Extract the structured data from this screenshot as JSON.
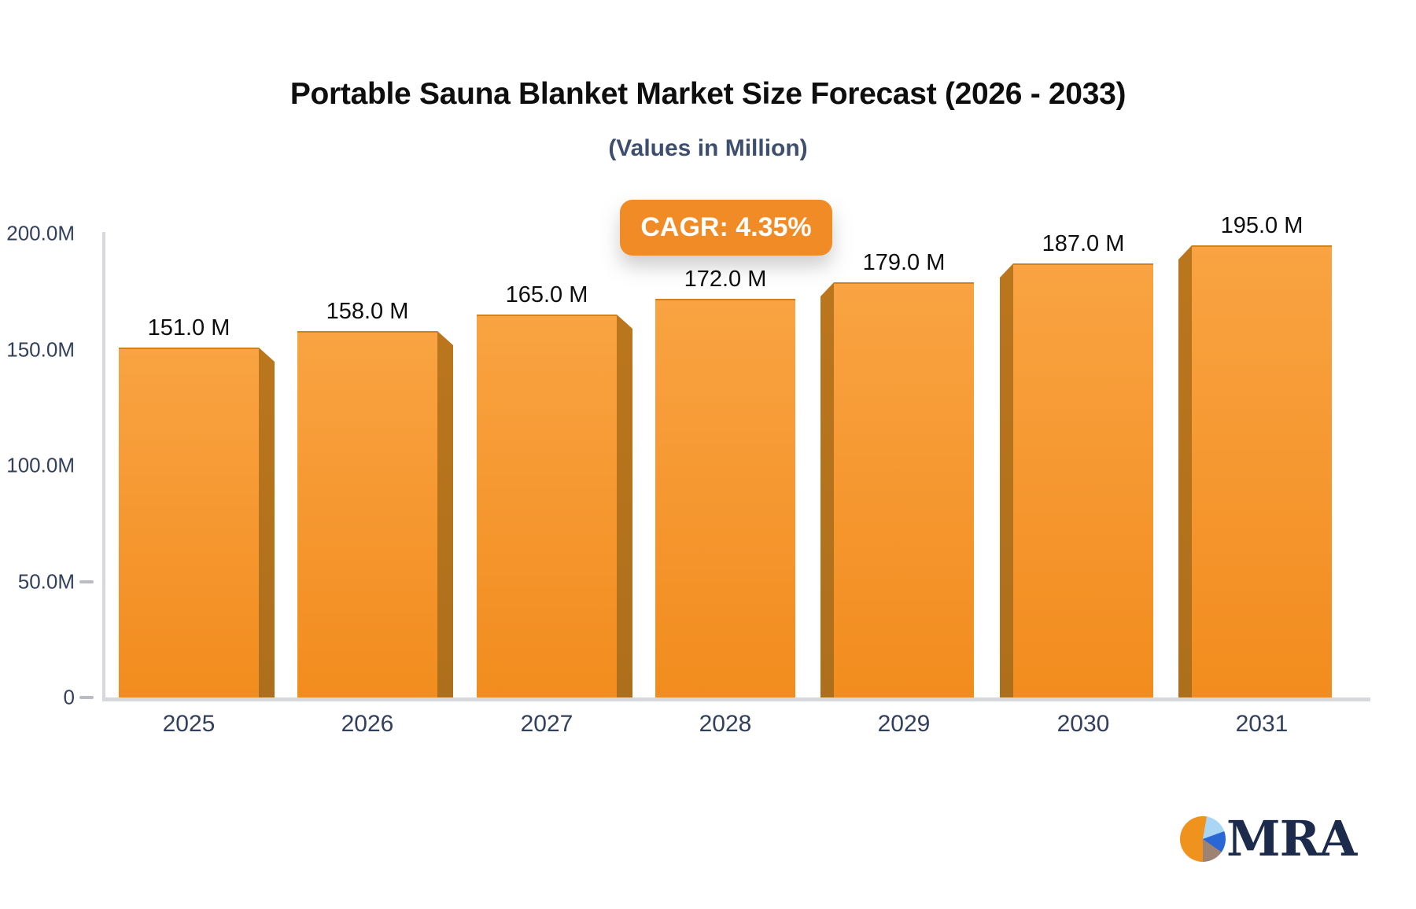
{
  "title": "Portable Sauna Blanket Market Size Forecast (2026 - 2033)",
  "subtitle": "(Values in Million)",
  "badge": {
    "label": "CAGR: 4.35%",
    "color": "#f18b26"
  },
  "chart_data": {
    "type": "bar",
    "categories": [
      "2025",
      "2026",
      "2027",
      "2028",
      "2029",
      "2030",
      "2031"
    ],
    "values": [
      151,
      158,
      165,
      172,
      179,
      187,
      195
    ],
    "value_labels": [
      "151.0 M",
      "158.0 M",
      "165.0 M",
      "172.0 M",
      "179.0 M",
      "187.0 M",
      "195.0 M"
    ],
    "title": "Portable Sauna Blanket Market Size Forecast (2026 - 2033)",
    "xlabel": "",
    "ylabel": "",
    "ylim": [
      0,
      200
    ],
    "grid": false,
    "legend": false,
    "yticks": [
      {
        "label": "200.0M",
        "value": 200,
        "dash": false
      },
      {
        "label": "150.0M",
        "value": 150,
        "dash": false
      },
      {
        "label": "100.0M",
        "value": 100,
        "dash": false
      },
      {
        "label": "50.0M",
        "value": 50,
        "dash": true
      },
      {
        "label": "0",
        "value": 0,
        "dash": true
      }
    ],
    "colors": {
      "bar_top": "#f9a342",
      "bar_bottom": "#f28c1e",
      "bar_side": "#b5721d",
      "axis_line": "#d6d8dd",
      "tick_text": "#32405c",
      "value_text": "#0d0d0d"
    }
  },
  "logo": {
    "text": "MRA",
    "text_color": "#1c2a4c",
    "pie_orange": "#f0921e",
    "pie_light_blue": "#a9d6f5",
    "pie_dark_blue": "#2a66d4",
    "pie_taupe": "#9c8372"
  }
}
